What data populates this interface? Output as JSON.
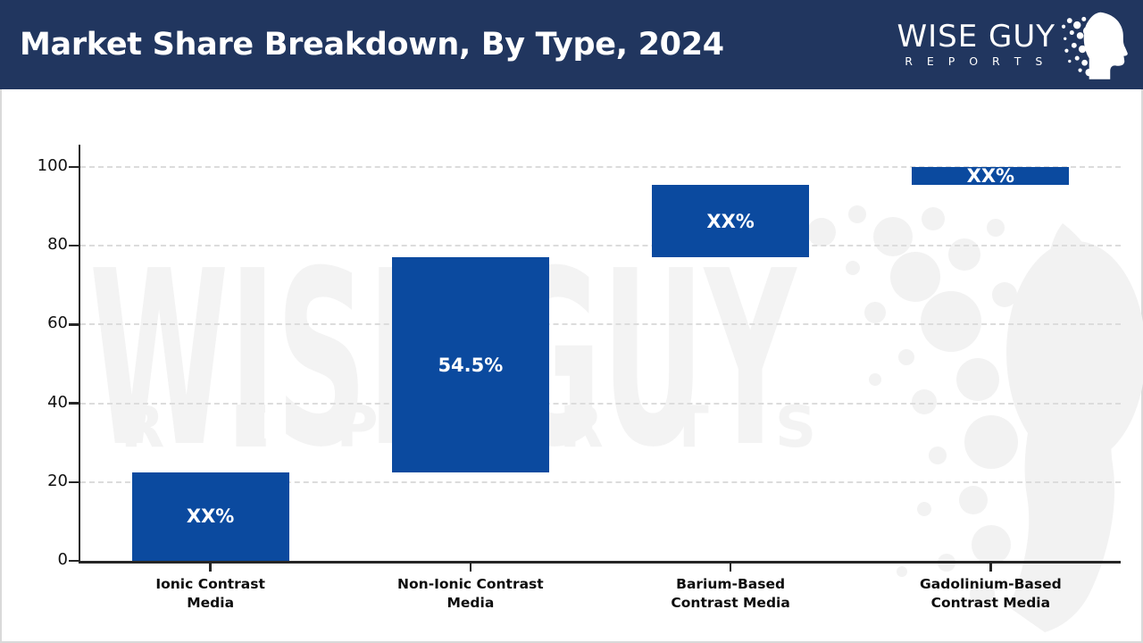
{
  "header": {
    "title": "Market Share Breakdown, By Type, 2024",
    "bg_color": "#21365f",
    "logo": {
      "line1": "WISE GUY",
      "line2": "R E P O R T S",
      "icon": "wiseguy-face-icon"
    }
  },
  "watermark": {
    "line1": "WISE GUY",
    "line2": "R E P O R T S",
    "color": "#f3f3f3"
  },
  "chart_data": {
    "type": "bar",
    "subtype": "floating-waterfall",
    "title": "Market Share Breakdown, By Type, 2024",
    "categories": [
      "Ionic Contrast\nMedia",
      "Non-Ionic Contrast\nMedia",
      "Barium-Based\nContrast Media",
      "Gadolinium-Based\nContrast Media"
    ],
    "segments": [
      {
        "from": 0,
        "to": 22.5,
        "label": "XX%"
      },
      {
        "from": 22.5,
        "to": 77,
        "label": "54.5%"
      },
      {
        "from": 77,
        "to": 95.5,
        "label": "XX%"
      },
      {
        "from": 95.5,
        "to": 100,
        "label": "XX%"
      }
    ],
    "values": [
      22.5,
      54.5,
      18.5,
      4.5
    ],
    "xlabel": "",
    "ylabel": "",
    "ylim": [
      0,
      105
    ],
    "yticks": [
      0,
      20,
      40,
      60,
      80,
      100
    ],
    "grid": "horizontal-dashed",
    "legend": "none",
    "bar_color": "#0b4a9f",
    "bar_label_color": "#ffffff",
    "axis_color": "#262626",
    "gridline_color": "#dcdcdc"
  }
}
